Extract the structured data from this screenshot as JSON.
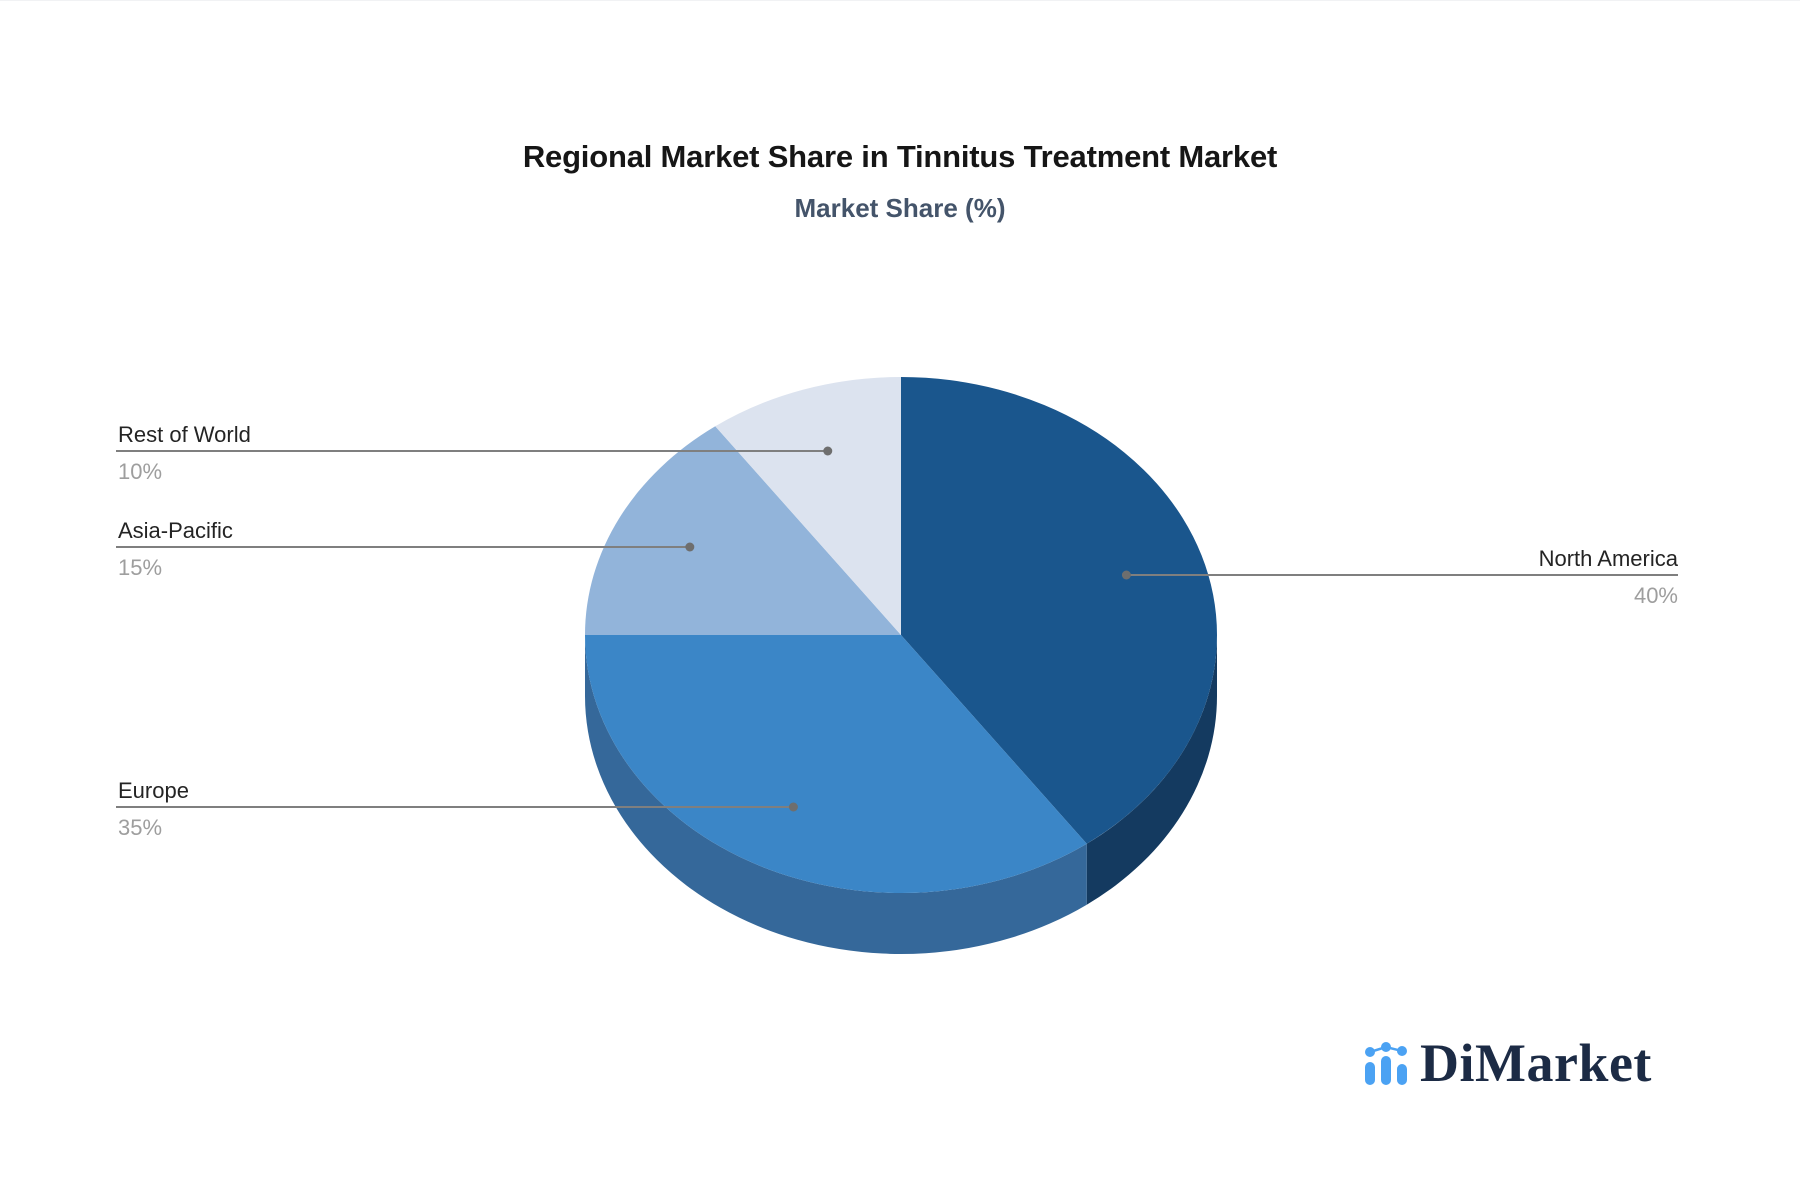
{
  "page": {
    "background": "#ffffff"
  },
  "chart_data": {
    "type": "pie",
    "three_d": true,
    "title": "Regional Market Share in Tinnitus Treatment Market",
    "subtitle": "Market Share (%)",
    "unit": "%",
    "start_angle_deg": 90,
    "direction": "clockwise",
    "legend": "none",
    "slices": [
      {
        "label": "North America",
        "value": 40,
        "pct_label": "40%",
        "color": "#1a568d",
        "side_color": "#143a60"
      },
      {
        "label": "Europe",
        "value": 35,
        "pct_label": "35%",
        "color": "#3b86c7",
        "side_color": "#35689a"
      },
      {
        "label": "Asia-Pacific",
        "value": 15,
        "pct_label": "15%",
        "color": "#92b4da"
      },
      {
        "label": "Rest of World",
        "value": 10,
        "pct_label": "10%",
        "color": "#dce3ef"
      }
    ],
    "labels": {
      "name_color": "#242424",
      "value_color": "#9e9e9e",
      "line_color": "#7f7f7f",
      "bullet_color": "#6e6e6e"
    }
  },
  "branding": {
    "logo_text": "DiMarket",
    "logo_color": "#1c2b45",
    "icon": "bar-line-chart-icon",
    "icon_color": "#4ba2f3"
  }
}
